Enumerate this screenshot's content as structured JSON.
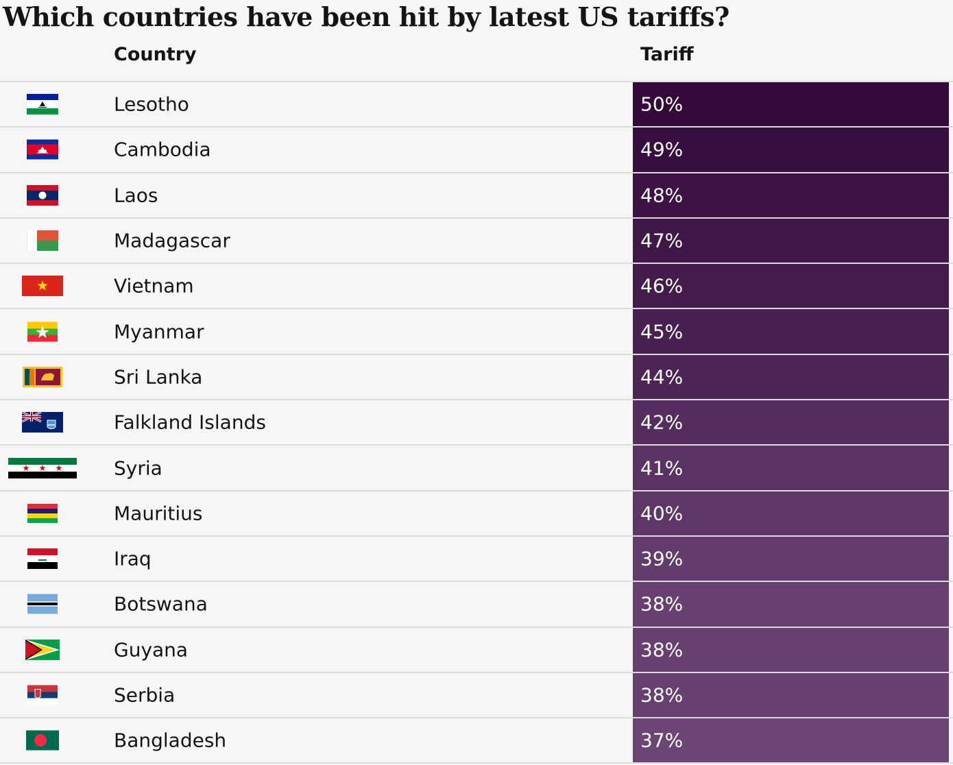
{
  "title": "Which countries have been hit by latest US tariffs?",
  "headers": {
    "country": "Country",
    "tariff": "Tariff"
  },
  "colors": {
    "max": "#330a3a",
    "min": "#6b4574",
    "background": "#f6f6f6",
    "divider": "#dcdcdc"
  },
  "chart_data": {
    "type": "table",
    "columns": [
      "Country",
      "Tariff"
    ],
    "rows": [
      {
        "country": "Lesotho",
        "tariff": "50%",
        "value": 50,
        "flag": "lesotho-flag"
      },
      {
        "country": "Cambodia",
        "tariff": "49%",
        "value": 49,
        "flag": "cambodia-flag"
      },
      {
        "country": "Laos",
        "tariff": "48%",
        "value": 48,
        "flag": "laos-flag"
      },
      {
        "country": "Madagascar",
        "tariff": "47%",
        "value": 47,
        "flag": "madagascar-flag"
      },
      {
        "country": "Vietnam",
        "tariff": "46%",
        "value": 46,
        "flag": "vietnam-flag"
      },
      {
        "country": "Myanmar",
        "tariff": "45%",
        "value": 45,
        "flag": "myanmar-flag"
      },
      {
        "country": "Sri Lanka",
        "tariff": "44%",
        "value": 44,
        "flag": "sri-lanka-flag"
      },
      {
        "country": "Falkland Islands",
        "tariff": "42%",
        "value": 42,
        "flag": "falkland-islands-flag"
      },
      {
        "country": "Syria",
        "tariff": "41%",
        "value": 41,
        "flag": "syria-flag"
      },
      {
        "country": "Mauritius",
        "tariff": "40%",
        "value": 40,
        "flag": "mauritius-flag"
      },
      {
        "country": "Iraq",
        "tariff": "39%",
        "value": 39,
        "flag": "iraq-flag"
      },
      {
        "country": "Botswana",
        "tariff": "38%",
        "value": 38,
        "flag": "botswana-flag"
      },
      {
        "country": "Guyana",
        "tariff": "38%",
        "value": 38,
        "flag": "guyana-flag"
      },
      {
        "country": "Serbia",
        "tariff": "38%",
        "value": 38,
        "flag": "serbia-flag"
      },
      {
        "country": "Bangladesh",
        "tariff": "37%",
        "value": 37,
        "flag": "bangladesh-flag"
      }
    ]
  }
}
